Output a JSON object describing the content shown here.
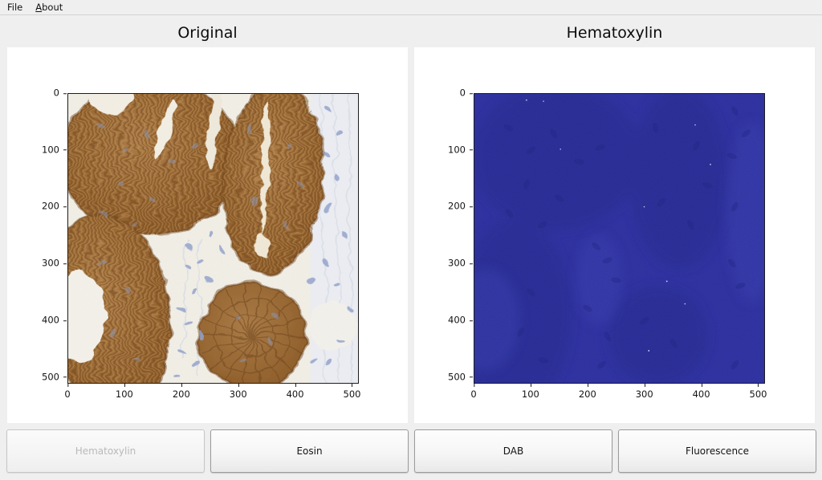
{
  "app": {
    "background": "#efefef",
    "kind": "stain-separation-viewer"
  },
  "menu_bar": {
    "items": [
      {
        "label": "File"
      },
      {
        "label": "About",
        "accel": "A",
        "rest": "bout"
      }
    ]
  },
  "panels": [
    {
      "title": "Original",
      "content": "IHC-stained colon tissue micrograph (brown DAB on blue hematoxylin nuclei)"
    },
    {
      "title": "Hematoxylin",
      "content": "Hematoxylin stain channel rendered in dark royal blue"
    }
  ],
  "axes": {
    "x_ticks": [
      "0",
      "100",
      "200",
      "300",
      "400",
      "500"
    ],
    "y_ticks": [
      "0",
      "100",
      "200",
      "300",
      "400",
      "500"
    ]
  },
  "buttons": [
    {
      "label": "Hematoxylin",
      "state": "disabled"
    },
    {
      "label": "Eosin",
      "state": "enabled"
    },
    {
      "label": "DAB",
      "state": "enabled"
    },
    {
      "label": "Fluorescence",
      "state": "enabled"
    }
  ],
  "colors": {
    "hematoxylin_blue": "#2d30a0",
    "dab_brown": "#96652f",
    "stroma_cream": "#f2efe7",
    "window_bg": "#efefef"
  }
}
